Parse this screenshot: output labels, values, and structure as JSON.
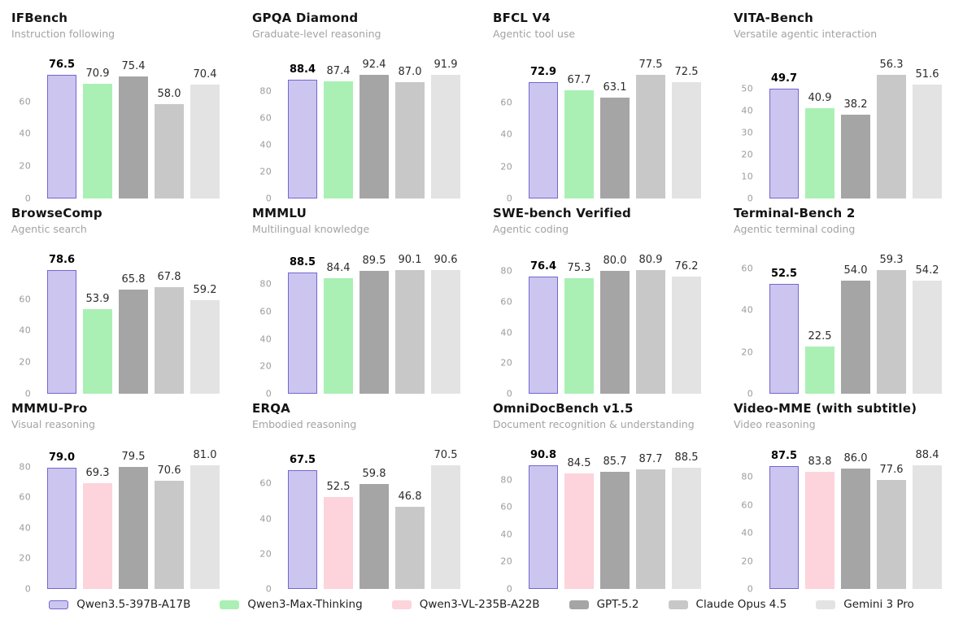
{
  "page": {
    "background": "#ffffff"
  },
  "palette": {
    "qwen35": {
      "label": "Qwen3.5-397B-A17B",
      "fill": "#ccc5f0",
      "border": "#7168cf"
    },
    "qwen3max": {
      "label": "Qwen3-Max-Thinking",
      "fill": "#aaf0b4"
    },
    "qwen3vl": {
      "label": "Qwen3-VL-235B-A22B",
      "fill": "#fdd3dc"
    },
    "gpt52": {
      "label": "GPT-5.2",
      "fill": "#a5a5a5"
    },
    "opus45": {
      "label": "Claude Opus 4.5",
      "fill": "#c8c8c8"
    },
    "gemini3": {
      "label": "Gemini 3 Pro",
      "fill": "#e3e3e3"
    }
  },
  "legend": [
    "qwen35",
    "qwen3max",
    "qwen3vl",
    "gpt52",
    "opus45",
    "gemini3"
  ],
  "chart_data": [
    {
      "type": "bar",
      "title": "IFBench",
      "subtitle": "Instruction following",
      "yticks": [
        0,
        20,
        40,
        60
      ],
      "models": [
        "qwen35",
        "qwen3max",
        "gpt52",
        "opus45",
        "gemini3"
      ],
      "values": [
        76.5,
        70.9,
        75.4,
        58.0,
        70.4
      ]
    },
    {
      "type": "bar",
      "title": "GPQA Diamond",
      "subtitle": "Graduate-level reasoning",
      "yticks": [
        0,
        20,
        40,
        60,
        80
      ],
      "models": [
        "qwen35",
        "qwen3max",
        "gpt52",
        "opus45",
        "gemini3"
      ],
      "values": [
        88.4,
        87.4,
        92.4,
        87.0,
        91.9
      ]
    },
    {
      "type": "bar",
      "title": "BFCL V4",
      "subtitle": "Agentic tool use",
      "yticks": [
        0,
        20,
        40,
        60
      ],
      "models": [
        "qwen35",
        "qwen3max",
        "gpt52",
        "opus45",
        "gemini3"
      ],
      "values": [
        72.9,
        67.7,
        63.1,
        77.5,
        72.5
      ]
    },
    {
      "type": "bar",
      "title": "VITA-Bench",
      "subtitle": "Versatile agentic interaction",
      "yticks": [
        0,
        10,
        20,
        30,
        40,
        50
      ],
      "models": [
        "qwen35",
        "qwen3max",
        "gpt52",
        "opus45",
        "gemini3"
      ],
      "values": [
        49.7,
        40.9,
        38.2,
        56.3,
        51.6
      ]
    },
    {
      "type": "bar",
      "title": "BrowseComp",
      "subtitle": "Agentic search",
      "yticks": [
        0,
        20,
        40,
        60
      ],
      "models": [
        "qwen35",
        "qwen3max",
        "gpt52",
        "opus45",
        "gemini3"
      ],
      "values": [
        78.6,
        53.9,
        65.8,
        67.8,
        59.2
      ]
    },
    {
      "type": "bar",
      "title": "MMMLU",
      "subtitle": "Multilingual knowledge",
      "yticks": [
        0,
        20,
        40,
        60,
        80
      ],
      "models": [
        "qwen35",
        "qwen3max",
        "gpt52",
        "opus45",
        "gemini3"
      ],
      "values": [
        88.5,
        84.4,
        89.5,
        90.1,
        90.6
      ]
    },
    {
      "type": "bar",
      "title": "SWE-bench Verified",
      "subtitle": "Agentic coding",
      "yticks": [
        0,
        20,
        40,
        60,
        80
      ],
      "models": [
        "qwen35",
        "qwen3max",
        "gpt52",
        "opus45",
        "gemini3"
      ],
      "values": [
        76.4,
        75.3,
        80.0,
        80.9,
        76.2
      ]
    },
    {
      "type": "bar",
      "title": "Terminal-Bench 2",
      "subtitle": "Agentic terminal coding",
      "yticks": [
        0,
        20,
        40,
        60
      ],
      "models": [
        "qwen35",
        "qwen3max",
        "gpt52",
        "opus45",
        "gemini3"
      ],
      "values": [
        52.5,
        22.5,
        54.0,
        59.3,
        54.2
      ]
    },
    {
      "type": "bar",
      "title": "MMMU-Pro",
      "subtitle": "Visual reasoning",
      "yticks": [
        0,
        20,
        40,
        60,
        80
      ],
      "models": [
        "qwen35",
        "qwen3vl",
        "gpt52",
        "opus45",
        "gemini3"
      ],
      "values": [
        79.0,
        69.3,
        79.5,
        70.6,
        81.0
      ]
    },
    {
      "type": "bar",
      "title": "ERQA",
      "subtitle": "Embodied reasoning",
      "yticks": [
        0,
        20,
        40,
        60
      ],
      "models": [
        "qwen35",
        "qwen3vl",
        "gpt52",
        "opus45",
        "gemini3"
      ],
      "values": [
        67.5,
        52.5,
        59.8,
        46.8,
        70.5
      ]
    },
    {
      "type": "bar",
      "title": "OmniDocBench v1.5",
      "subtitle": "Document recognition & understanding",
      "yticks": [
        0,
        20,
        40,
        60,
        80
      ],
      "models": [
        "qwen35",
        "qwen3vl",
        "gpt52",
        "opus45",
        "gemini3"
      ],
      "values": [
        90.8,
        84.5,
        85.7,
        87.7,
        88.5
      ]
    },
    {
      "type": "bar",
      "title": "Video-MME (with subtitle)",
      "subtitle": "Video reasoning",
      "yticks": [
        0,
        20,
        40,
        60,
        80
      ],
      "models": [
        "qwen35",
        "qwen3vl",
        "gpt52",
        "opus45",
        "gemini3"
      ],
      "values": [
        87.5,
        83.8,
        86.0,
        77.6,
        88.4
      ]
    }
  ]
}
